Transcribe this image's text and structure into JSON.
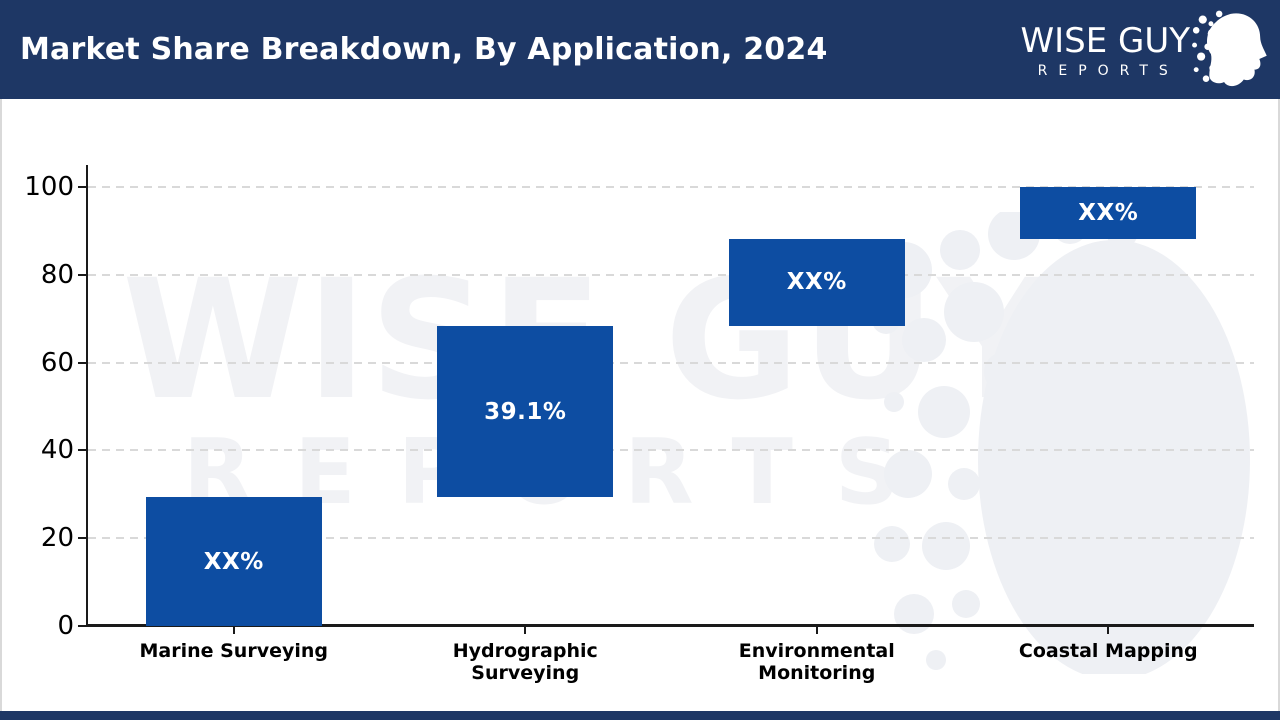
{
  "header": {
    "title": "Market Share Breakdown, By Application, 2024",
    "logo": {
      "wordmark": "WISE GUY",
      "sub": "REPORTS"
    }
  },
  "watermark": {
    "wordmark": "WISE GUY",
    "sub": "REPORTS"
  },
  "chart_data": {
    "type": "bar",
    "subtype": "waterfall-cumulative-segments",
    "title": "Market Share Breakdown, By Application, 2024",
    "categories": [
      "Marine Surveying",
      "Hydrographic Surveying",
      "Environmental Monitoring",
      "Coastal Mapping"
    ],
    "segments": [
      {
        "category": "Marine Surveying",
        "start": 0,
        "end": 29.3,
        "value_label": "XX%"
      },
      {
        "category": "Hydrographic Surveying",
        "start": 29.3,
        "end": 68.4,
        "value_label": "39.1%"
      },
      {
        "category": "Environmental Monitoring",
        "start": 68.4,
        "end": 88.2,
        "value_label": "XX%"
      },
      {
        "category": "Coastal Mapping",
        "start": 88.2,
        "end": 100,
        "value_label": "XX%"
      }
    ],
    "y_ticks": [
      0,
      20,
      40,
      60,
      80,
      100
    ],
    "ylim": [
      0,
      105
    ],
    "xlabel": "",
    "ylabel": "",
    "grid": "horizontal-dashed",
    "legend": "none"
  },
  "colors": {
    "header_navy": "#1e3765",
    "footer_navy": "#1e3765",
    "bar_blue": "#0d4da2",
    "bar_label_white": "#ffffff",
    "grid_gray": "#d9d9d9",
    "axis_black": "#1a1a1a",
    "tick_text": "#000000",
    "watermark_gray": "#f1f2f5",
    "border_gray": "#d9d9d9"
  }
}
